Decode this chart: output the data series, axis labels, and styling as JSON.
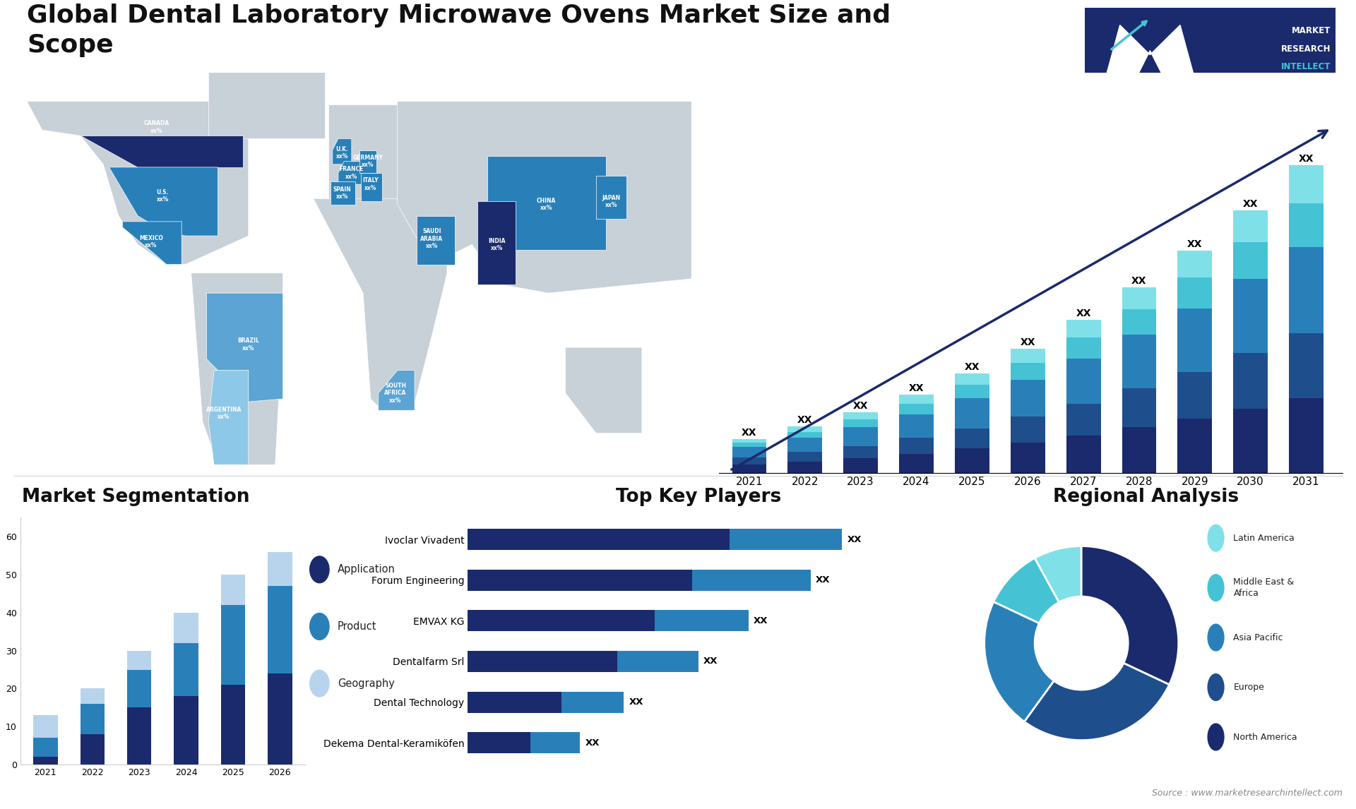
{
  "title": "Global Dental Laboratory Microwave Ovens Market Size and\nScope",
  "title_fontsize": 26,
  "background_color": "#ffffff",
  "bar_chart_years": [
    "2021",
    "2022",
    "2023",
    "2024",
    "2025",
    "2026",
    "2027",
    "2028",
    "2029",
    "2030",
    "2031"
  ],
  "bar_seg1": [
    1.0,
    1.3,
    1.7,
    2.2,
    2.8,
    3.5,
    4.3,
    5.2,
    6.2,
    7.3,
    8.5
  ],
  "bar_seg2": [
    0.8,
    1.1,
    1.4,
    1.8,
    2.3,
    2.9,
    3.6,
    4.4,
    5.3,
    6.3,
    7.4
  ],
  "bar_seg3": [
    1.2,
    1.6,
    2.1,
    2.7,
    3.4,
    4.2,
    5.1,
    6.1,
    7.2,
    8.4,
    9.7
  ],
  "bar_seg4": [
    0.5,
    0.7,
    0.9,
    1.2,
    1.5,
    1.9,
    2.4,
    2.9,
    3.5,
    4.2,
    5.0
  ],
  "bar_seg5": [
    0.4,
    0.6,
    0.8,
    1.0,
    1.3,
    1.6,
    2.0,
    2.5,
    3.0,
    3.6,
    4.3
  ],
  "bar_colors": [
    "#1a2a6c",
    "#1f4e8c",
    "#2980b9",
    "#45c3d4",
    "#7fe0e8"
  ],
  "seg_years": [
    "2021",
    "2022",
    "2023",
    "2024",
    "2025",
    "2026"
  ],
  "seg_application": [
    2,
    8,
    15,
    18,
    21,
    24
  ],
  "seg_product": [
    5,
    8,
    10,
    14,
    21,
    23
  ],
  "seg_geography": [
    6,
    4,
    5,
    8,
    8,
    9
  ],
  "seg_colors": [
    "#1a2a6c",
    "#2980b9",
    "#b8d4ed"
  ],
  "players": [
    "Ivoclar Vivadent",
    "Forum Engineering",
    "EMVAX KG",
    "Dentalfarm Srl",
    "Dental Technology",
    "Dekema Dental-Keramiköfen"
  ],
  "players_seg1": [
    42,
    36,
    30,
    24,
    15,
    10
  ],
  "players_seg2": [
    18,
    19,
    15,
    13,
    10,
    8
  ],
  "players_bar_color1": "#1a2a6c",
  "players_bar_color2": "#2980b9",
  "pie_values": [
    8,
    10,
    22,
    28,
    32
  ],
  "pie_labels": [
    "Latin America",
    "Middle East &\nAfrica",
    "Asia Pacific",
    "Europe",
    "North America"
  ],
  "pie_colors": [
    "#7fe0e8",
    "#45c3d4",
    "#2980b9",
    "#1f4e8c",
    "#1a2a6c"
  ],
  "source_text": "Source : www.marketresearchintellect.com",
  "section_titles": {
    "segmentation": "Market Segmentation",
    "players": "Top Key Players",
    "regional": "Regional Analysis"
  },
  "map_highlight_colors": {
    "dark_blue": "#1a2a6c",
    "mid_blue": "#2980b9",
    "light_blue": "#5ba4d4",
    "lighter_blue": "#8ec8e8",
    "continent": "#c8d0d8"
  }
}
